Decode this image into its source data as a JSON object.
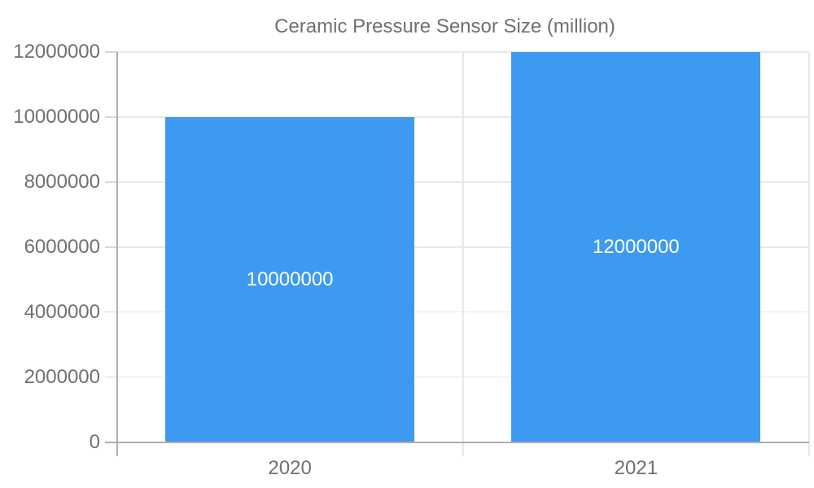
{
  "legend": {
    "label": "Ceramic Pressure Sensor Size (million)"
  },
  "chart_data": {
    "type": "bar",
    "title": "Ceramic Pressure Sensor Size (million)",
    "categories": [
      "2020",
      "2021"
    ],
    "series": [
      {
        "name": "Ceramic Pressure Sensor Size (million)",
        "values": [
          10000000,
          12000000
        ]
      }
    ],
    "value_labels": [
      "10000000",
      "12000000"
    ],
    "yticks": [
      0,
      2000000,
      4000000,
      6000000,
      8000000,
      10000000,
      12000000
    ],
    "ytick_labels": [
      "0",
      "2000000",
      "4000000",
      "6000000",
      "8000000",
      "10000000",
      "12000000"
    ],
    "ylim": [
      0,
      12000000
    ],
    "xlabel": "",
    "ylabel": "",
    "grid": true,
    "legend_position": "top",
    "colors": {
      "bar": "#3D9AF0",
      "label_text": "#707070",
      "value_text": "#FFFFFF",
      "gridline": "#E8E8E8",
      "axis_line": "#ADADAD",
      "background": "#FFFFFF"
    }
  }
}
